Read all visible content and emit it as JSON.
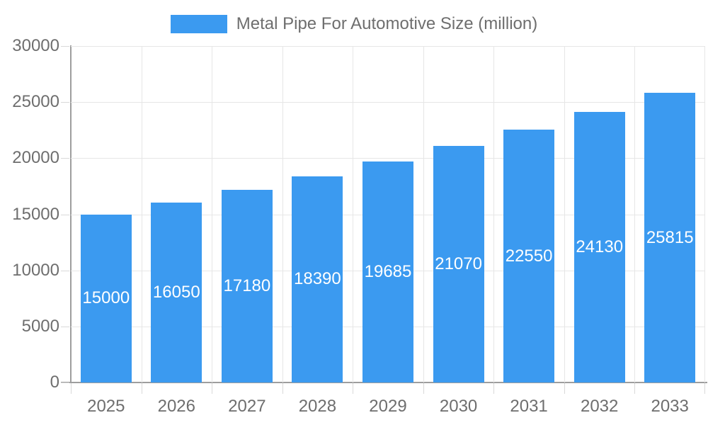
{
  "legend": {
    "label": "Metal Pipe For Automotive Size (million)"
  },
  "chart_data": {
    "type": "bar",
    "title": "Metal Pipe For Automotive Size (million)",
    "categories": [
      "2025",
      "2026",
      "2027",
      "2028",
      "2029",
      "2030",
      "2031",
      "2032",
      "2033"
    ],
    "series": [
      {
        "name": "Metal Pipe For Automotive Size (million)",
        "values": [
          15000,
          16050,
          17180,
          18390,
          19685,
          21070,
          22550,
          24130,
          25815
        ]
      }
    ],
    "bar_value_labels": [
      "15000",
      "16050",
      "17180",
      "18390",
      "19685",
      "21070",
      "22550",
      "24130",
      "25815"
    ],
    "xlabel": "",
    "ylabel": "",
    "ylim": [
      0,
      30000
    ],
    "yticks": [
      0,
      5000,
      10000,
      15000,
      20000,
      25000,
      30000
    ],
    "grid": true,
    "legend_position": "top",
    "colors": {
      "bar": "#3b9af0",
      "bar_label": "#ffffff",
      "axis_text": "#6e6e6e",
      "legend_text": "#6e6e6e",
      "gridline": "#e6e6e6",
      "tick": "#d9d9d9",
      "axis_line": "#9e9e9e",
      "background": "#ffffff"
    }
  }
}
